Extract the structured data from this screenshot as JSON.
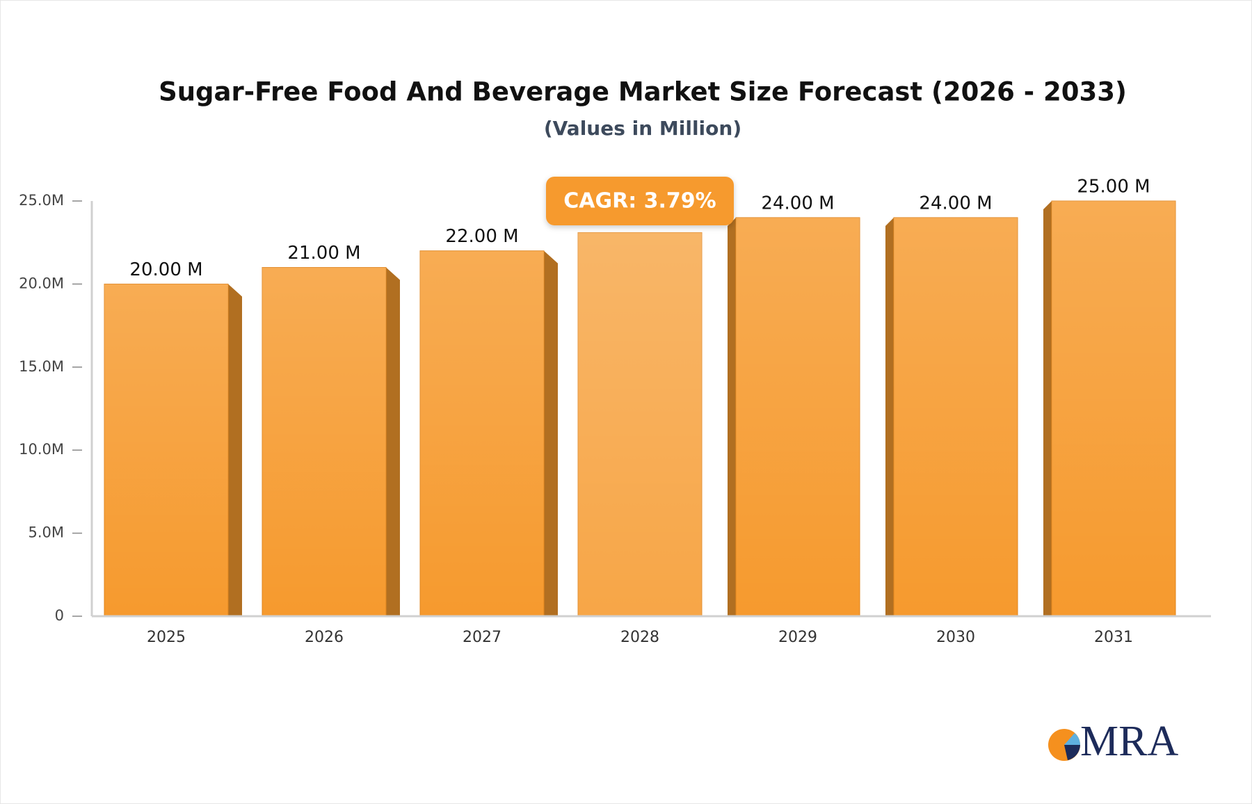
{
  "title": "Sugar-Free Food And Beverage Market Size Forecast (2026 - 2033)",
  "subtitle": "(Values in Million)",
  "chart_data": {
    "type": "bar",
    "categories": [
      "2025",
      "2026",
      "2027",
      "2028",
      "2029",
      "2030",
      "2031"
    ],
    "values": [
      20,
      21,
      22,
      23.1,
      24,
      24,
      25
    ],
    "value_labels": [
      "20.00 M",
      "21.00 M",
      "22.00 M",
      null,
      "24.00 M",
      "24.00 M",
      "25.00 M"
    ],
    "color": "#f69a2e",
    "ylim": [
      0,
      25
    ],
    "yticks": [
      0,
      {
        "value": 5,
        "label": "5.0M"
      },
      {
        "value": 10,
        "label": "10.0M"
      },
      {
        "value": 15,
        "label": "15.0M"
      },
      {
        "value": 20,
        "label": "20.0M"
      },
      {
        "value": 25,
        "label": "25.0M"
      }
    ],
    "grid": false,
    "annotation": "CAGR: 3.79%"
  },
  "logo": "MRA"
}
